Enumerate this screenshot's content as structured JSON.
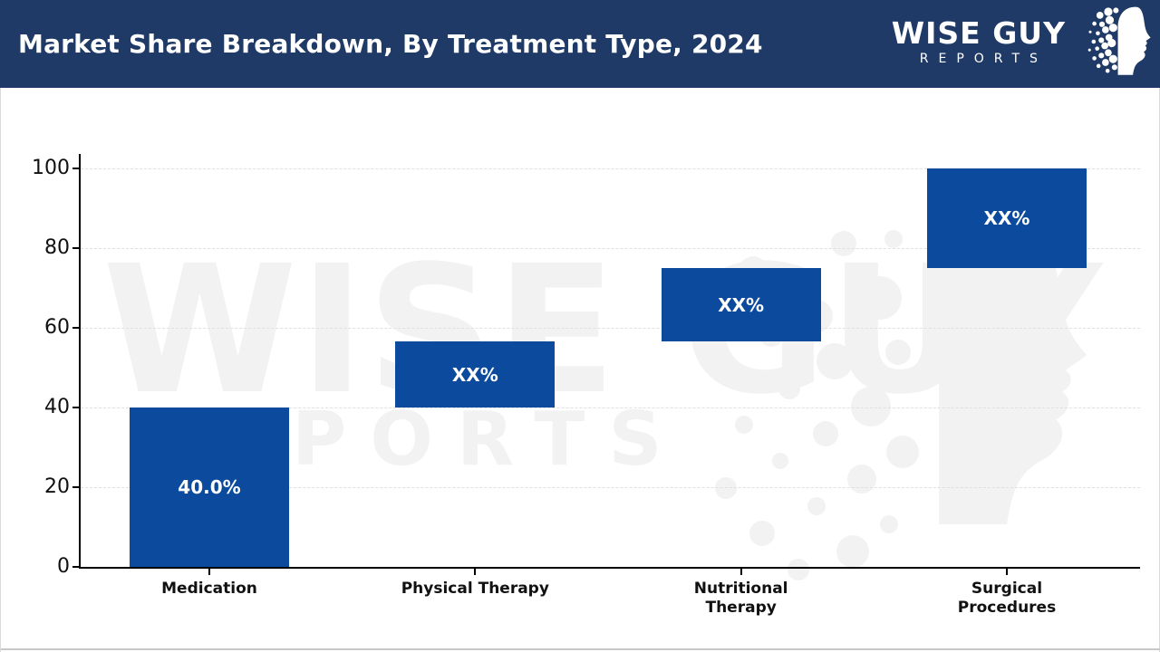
{
  "header": {
    "title": "Market Share Breakdown, By Treatment Type, 2024",
    "logo": {
      "wordmark": "WISE GUY",
      "subtext": "REPORTS"
    }
  },
  "watermark": {
    "wordmark": "WISE GUY",
    "subtext": "REPORTS"
  },
  "colors": {
    "header_bg": "#1f3a66",
    "bar": "#0b4a9c",
    "bar_label": "#ffffff",
    "grid": "#e0e0e0",
    "axis": "#000000",
    "tick_label": "#111111",
    "watermark": "#f2f2f2"
  },
  "chart_data": {
    "type": "bar",
    "subtype": "waterfall",
    "title": "Market Share Breakdown, By Treatment Type, 2024",
    "categories": [
      "Medication",
      "Physical Therapy",
      "Nutritional Therapy",
      "Surgical Procedures"
    ],
    "bars": [
      {
        "category": "Medication",
        "start": 0,
        "end": 40,
        "value_label": "40.0%"
      },
      {
        "category": "Physical Therapy",
        "start": 40,
        "end": 56.5,
        "value_label": "XX%"
      },
      {
        "category": "Nutritional Therapy",
        "start": 56.5,
        "end": 75,
        "value_label": "XX%"
      },
      {
        "category": "Surgical Procedures",
        "start": 75,
        "end": 100,
        "value_label": "XX%"
      }
    ],
    "y_ticks": [
      0,
      20,
      40,
      60,
      80,
      100
    ],
    "ylim": [
      0,
      100
    ],
    "xlabel": "",
    "ylabel": "",
    "grid": "horizontal-dashed",
    "legend": "none"
  }
}
